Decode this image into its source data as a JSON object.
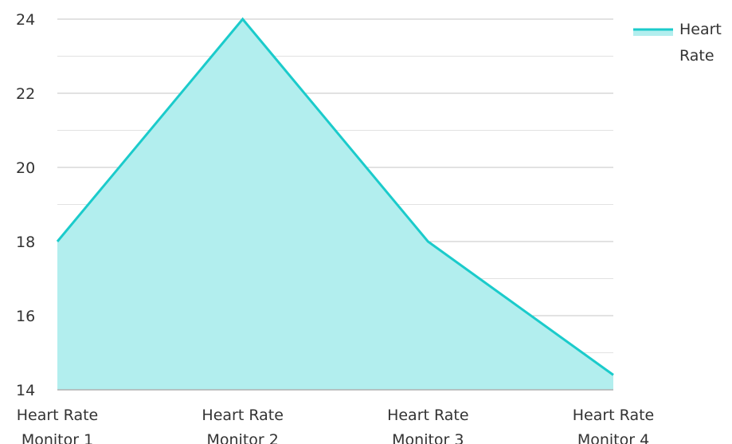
{
  "chart_data": {
    "type": "area",
    "title": "",
    "xlabel": "",
    "ylabel": "",
    "categories": [
      [
        "Heart Rate",
        "Monitor 1"
      ],
      [
        "Heart Rate",
        "Monitor 2"
      ],
      [
        "Heart Rate",
        "Monitor 3"
      ],
      [
        "Heart Rate",
        "Monitor 4"
      ]
    ],
    "series": [
      {
        "name": "Heart Rate",
        "values": [
          18,
          24,
          18,
          14.4
        ]
      }
    ],
    "ylim": [
      14,
      24
    ],
    "yticks": [
      "14",
      "16",
      "18",
      "20",
      "22",
      "24"
    ],
    "minor_gridlines": true,
    "grid": true,
    "legend": {
      "placement": "top-right",
      "label_lines": [
        "Heart",
        "Rate"
      ]
    },
    "colors": {
      "line": "#1bcbcb",
      "fill": "#b2eeee",
      "grid_major": "#c4c4c4",
      "grid_minor": "#e2e2e2",
      "axis": "#b0b0b0"
    }
  }
}
